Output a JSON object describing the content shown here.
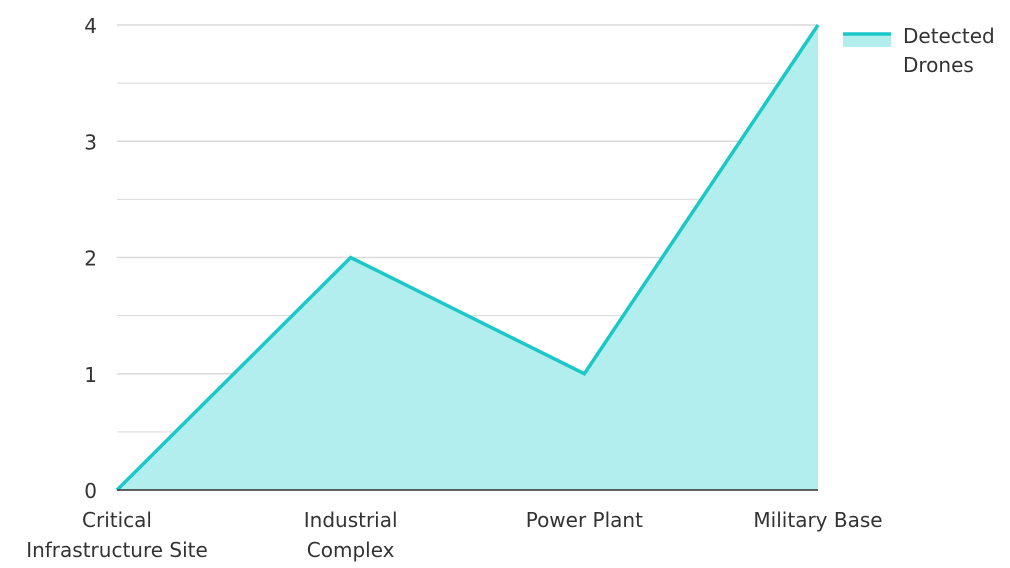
{
  "chart_data": {
    "type": "area",
    "categories": [
      [
        "Critical",
        "Infrastructure Site"
      ],
      [
        "Industrial",
        "Complex"
      ],
      [
        "Power Plant"
      ],
      [
        "Military Base"
      ]
    ],
    "series": [
      {
        "name": "Detected Drones",
        "name_lines": [
          "Detected",
          "Drones"
        ],
        "values": [
          0,
          2,
          1,
          4
        ],
        "line_color": "#1cc7c7",
        "fill_color": "#b2eeee"
      }
    ],
    "ylim": [
      0,
      4
    ],
    "yticks": [
      "0",
      "1",
      "2",
      "3",
      "4"
    ],
    "grid": true,
    "grid_color": "#d9d9d9",
    "minor_grid": true,
    "legend_position": "top-right"
  }
}
